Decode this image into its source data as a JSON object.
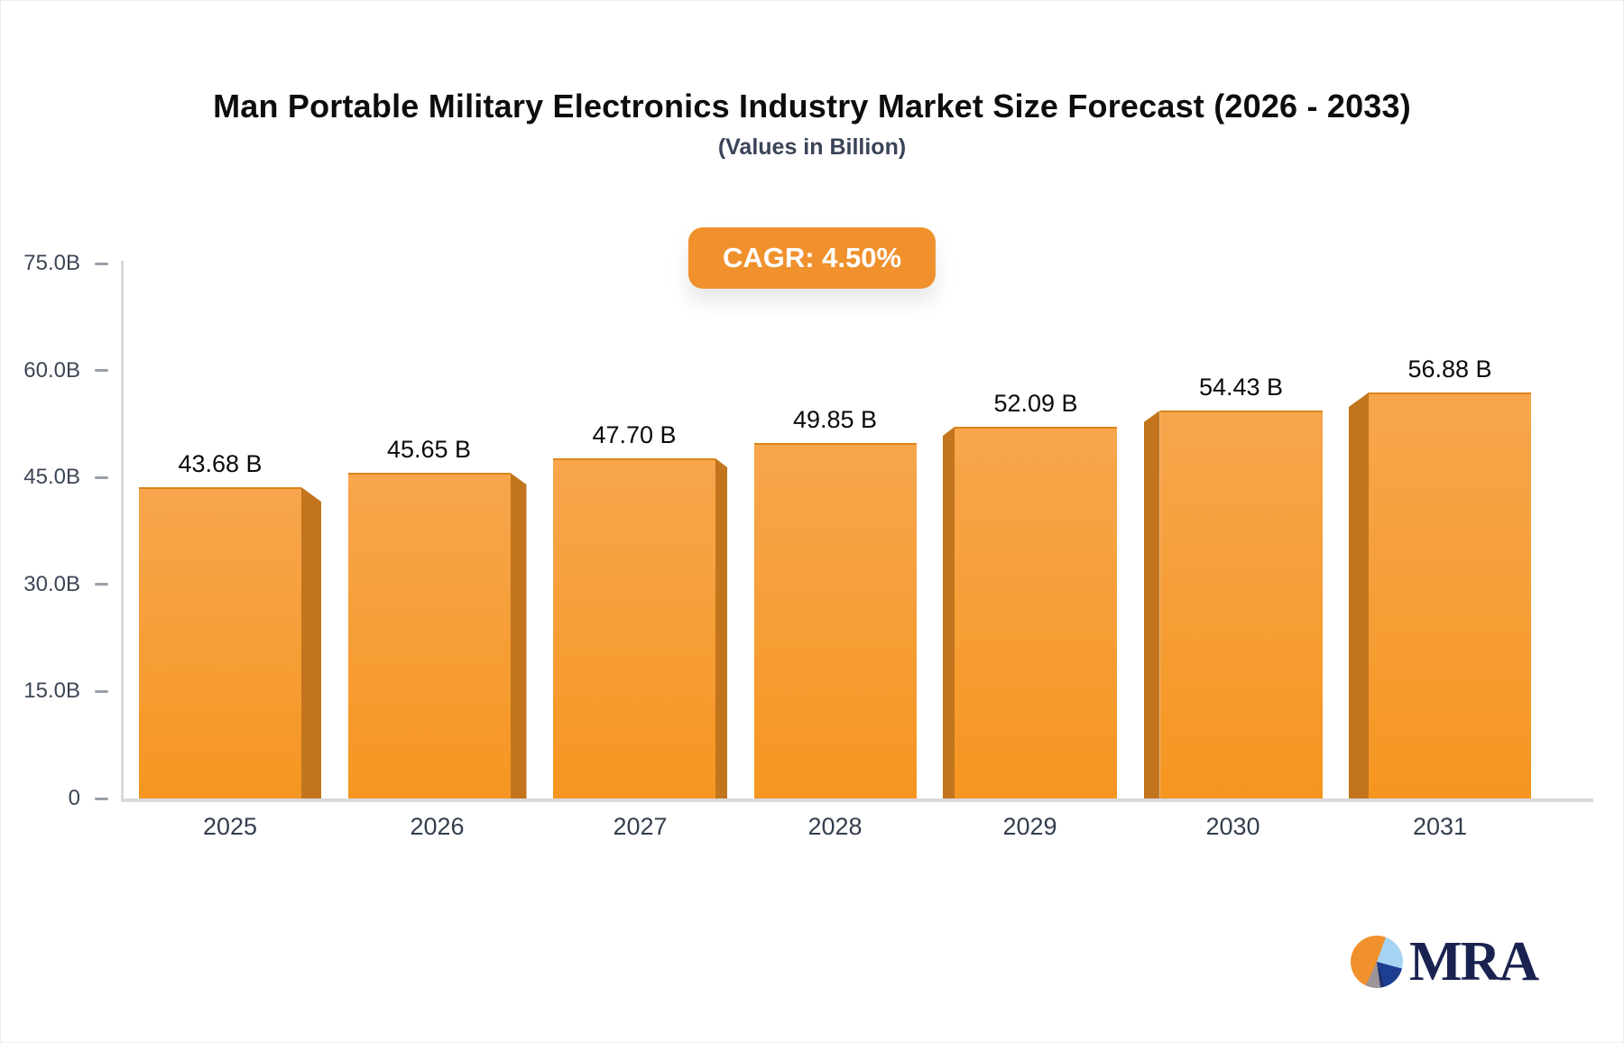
{
  "header": {
    "title": "Man Portable Military Electronics Industry Market Size Forecast (2026 - 2033)",
    "subtitle": "(Values in Billion)"
  },
  "badge": {
    "label": "CAGR: 4.50%",
    "bg_color": "#f0912d",
    "text_color": "#ffffff"
  },
  "chart_data": {
    "type": "bar",
    "title": "Man Portable Military Electronics Industry Market Size Forecast (2026 - 2033)",
    "subtitle": "(Values in Billion)",
    "categories": [
      "2025",
      "2026",
      "2027",
      "2028",
      "2029",
      "2030",
      "2031"
    ],
    "values": [
      43.68,
      45.65,
      47.7,
      49.85,
      52.09,
      54.43,
      56.88
    ],
    "value_labels": [
      "43.68 B",
      "45.65 B",
      "47.70 B",
      "49.85 B",
      "52.09 B",
      "54.43 B",
      "56.88 B"
    ],
    "xlabel": "",
    "ylabel": "",
    "ylim": [
      0,
      75
    ],
    "yticks": [
      0,
      15,
      30,
      45,
      60,
      75
    ],
    "ytick_labels": [
      "0",
      "15.0B",
      "30.0B",
      "45.0B",
      "60.0B",
      "75.0B"
    ],
    "grid": false,
    "legend": false,
    "cagr": "4.50%",
    "bar_color_top": "#f7a64d",
    "bar_color_bottom": "#f69621",
    "bar_side_color": "#c2751d",
    "axis_color": "#d9d9dd",
    "tick_text_color": "#3c4656",
    "category_text_color": "#333e4e",
    "value_text_color": "#0a0a0a"
  },
  "logo": {
    "text": "MRA",
    "text_color": "#1a2350",
    "pie_orange": "#f0912d",
    "pie_lightblue": "#a6d4f2",
    "pie_darkblue": "#1e3e92",
    "pie_navy": "#22306e",
    "pie_gray": "#9b9498"
  }
}
